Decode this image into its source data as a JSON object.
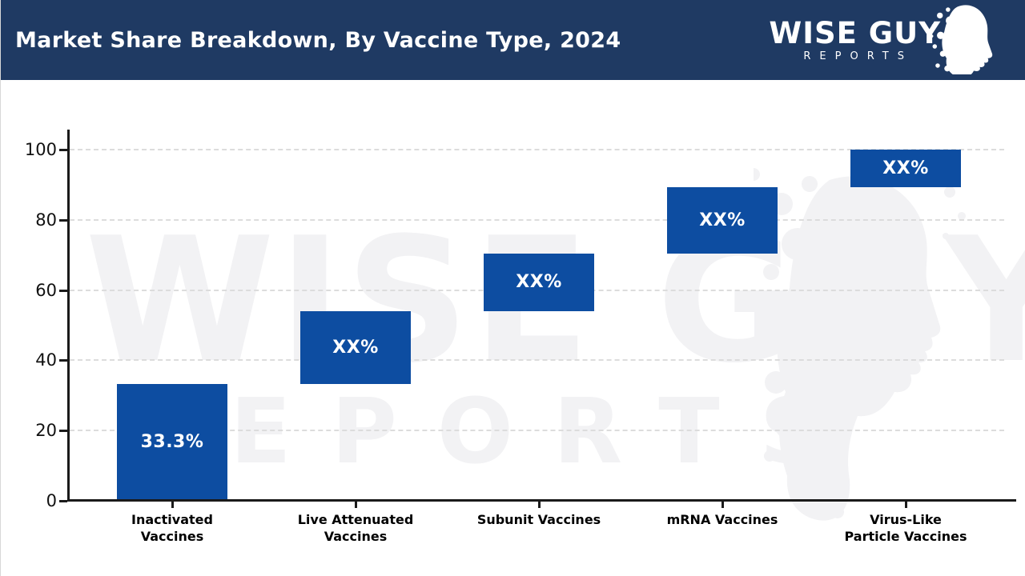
{
  "header": {
    "title": "Market Share Breakdown, By Vaccine Type, 2024",
    "logo": {
      "line1": "WISE GUY",
      "line2": "REPORTS"
    }
  },
  "watermark": {
    "line1": "WISE GUY",
    "line2": "REPORTS"
  },
  "colors": {
    "header_bg": "#1f3a63",
    "bar": "#0d4da1",
    "grid": "#dcdcdc",
    "axis": "#1a1a1a",
    "bar_label": "#ffffff",
    "watermark": "#f2f2f4"
  },
  "chart_data": {
    "type": "bar",
    "subtype": "waterfall",
    "title": "Market Share Breakdown, By Vaccine Type, 2024",
    "xlabel": "",
    "ylabel": "",
    "ylim": [
      0,
      105
    ],
    "yticks": [
      0,
      20,
      40,
      60,
      80,
      100
    ],
    "grid": "horizontal-dashed",
    "legend": "none",
    "categories": [
      "Inactivated\nVaccines",
      "Live Attenuated\nVaccines",
      "Subunit Vaccines",
      "mRNA Vaccines",
      "Virus-Like\nParticle Vaccines"
    ],
    "segments": [
      {
        "category": "Inactivated Vaccines",
        "start": 0,
        "end": 33.3,
        "label": "33.3%"
      },
      {
        "category": "Live Attenuated Vaccines",
        "start": 33.3,
        "end": 54.0,
        "label": "XX%"
      },
      {
        "category": "Subunit Vaccines",
        "start": 54.0,
        "end": 70.4,
        "label": "XX%"
      },
      {
        "category": "mRNA Vaccines",
        "start": 70.4,
        "end": 89.3,
        "label": "XX%"
      },
      {
        "category": "Virus-Like Particle Vaccines",
        "start": 89.3,
        "end": 100,
        "label": "XX%"
      }
    ]
  }
}
